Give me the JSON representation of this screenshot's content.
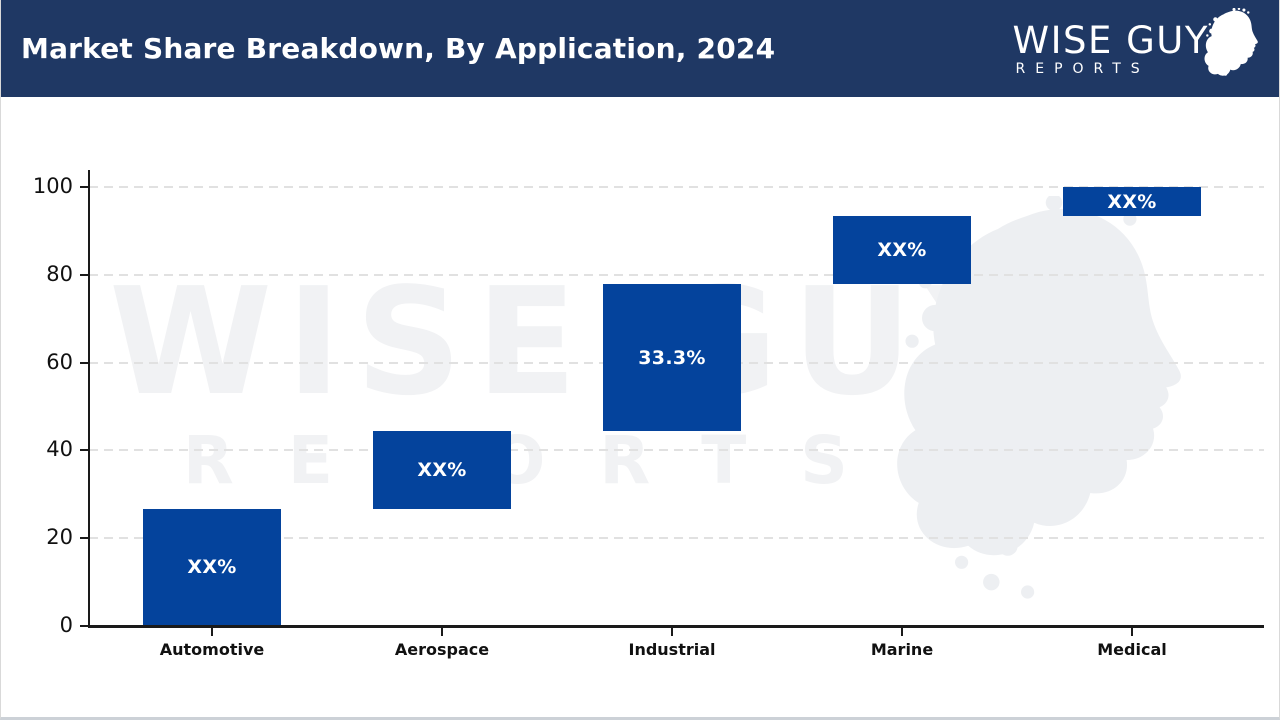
{
  "header": {
    "title": "Market Share Breakdown, By Application, 2024",
    "background_color": "#1f3864",
    "logo": {
      "line1": "WISE GUY",
      "line2": "REPORTS"
    }
  },
  "watermark": {
    "line1": "WISE GUY",
    "line2": "REPORTS"
  },
  "chart_data": {
    "type": "bar",
    "subtype": "floating-segment-waterfall",
    "title": "Market Share Breakdown, By Application, 2024",
    "xlabel": "",
    "ylabel": "",
    "categories": [
      "Automotive",
      "Aerospace",
      "Industrial",
      "Marine",
      "Medical"
    ],
    "bars": [
      {
        "category": "Automotive",
        "start": 0,
        "end": 26.7,
        "label": "XX%"
      },
      {
        "category": "Aerospace",
        "start": 26.7,
        "end": 44.4,
        "label": "XX%"
      },
      {
        "category": "Industrial",
        "start": 44.4,
        "end": 77.8,
        "label": "33.3%"
      },
      {
        "category": "Marine",
        "start": 77.8,
        "end": 93.3,
        "label": "XX%"
      },
      {
        "category": "Medical",
        "start": 93.3,
        "end": 100,
        "label": "XX%"
      }
    ],
    "y_ticks": [
      0,
      20,
      40,
      60,
      80,
      100
    ],
    "ylim": [
      0,
      105
    ],
    "bar_color": "#04439c",
    "grid": true,
    "grid_style": "dashed",
    "legend": false
  }
}
